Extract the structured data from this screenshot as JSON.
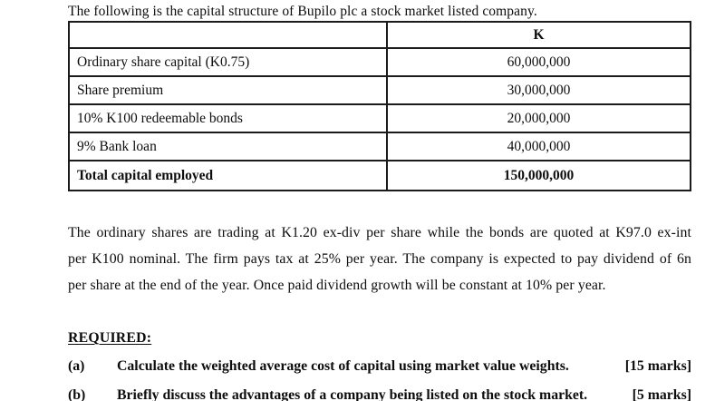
{
  "intro": "The following is the capital structure of Bupilo plc a stock market listed company.",
  "table": {
    "currency_header": "K",
    "rows": [
      {
        "label": "Ordinary share capital (K0.75)",
        "amount": "60,000,000"
      },
      {
        "label": "Share premium",
        "amount": "30,000,000"
      },
      {
        "label": "10% K100 redeemable bonds",
        "amount": "20,000,000"
      },
      {
        "label": "9% Bank loan",
        "amount": "40,000,000"
      }
    ],
    "total_row": {
      "label": "Total capital employed",
      "amount": "150,000,000"
    }
  },
  "paragraph": {
    "full_text": "The ordinary shares are trading at K1.20 ex-div per share while the bonds are quoted at K97.0 ex-int per K100 nominal. The firm pays tax at 25% per year. The company is expected to pay dividend of 6n per share at the end of the year. Once paid dividend growth will be constant at 10% per year.",
    "lines": [
      "The ordinary shares are trading at K1.20 ex-div per share while the bonds are quoted at K97.0 ex-int",
      "per K100 nominal. The firm pays tax at 25% per year. The company is expected to pay dividend of 6n",
      "per share at the end of the year. Once paid dividend growth will be constant at 10% per year."
    ]
  },
  "required": {
    "heading": "REQUIRED:",
    "items": [
      {
        "label": "(a)",
        "text": "Calculate the weighted average cost of capital using market value weights.",
        "marks": "[15 marks]"
      },
      {
        "label": "(b)",
        "text": "Briefly discuss the advantages of a company being listed on the stock market.",
        "marks": "[5 marks]"
      }
    ]
  }
}
